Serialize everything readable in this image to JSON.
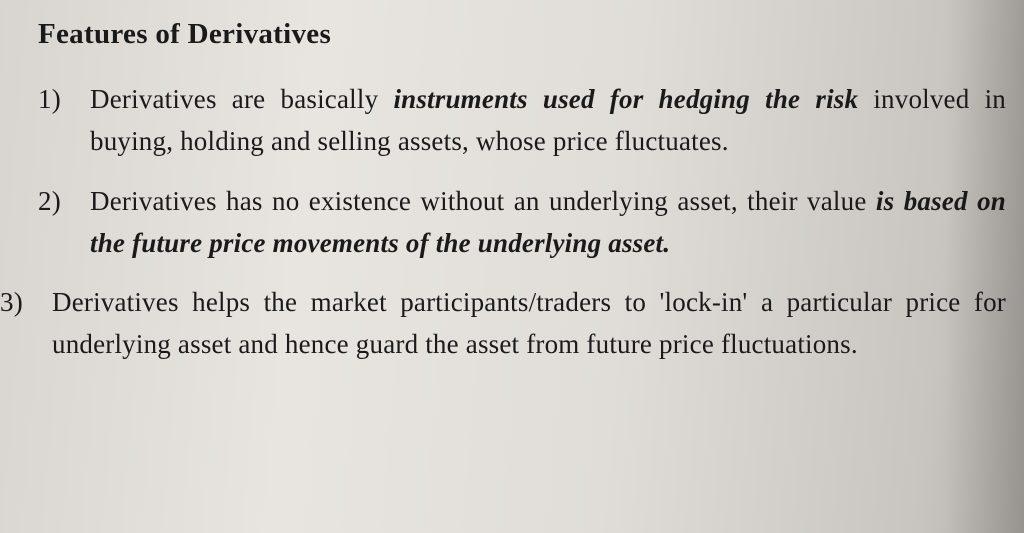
{
  "heading": "Features of Derivatives",
  "items": [
    {
      "num": "1)",
      "p1": "Derivatives are basically ",
      "em1": "instruments used for hedging the risk",
      "p2": " involved in buying, holding and selling assets, whose price fluctuates."
    },
    {
      "num": "2)",
      "p1": "Derivatives has no existence without an underlying asset, their value ",
      "em1": "is based on the future price movements of the underlying asset.",
      "p2": ""
    },
    {
      "num": "3)",
      "p1": "Derivatives helps the market participants/traders to 'lock-in' a particular price for underlying asset and hence guard the asset from future price fluctuations.",
      "em1": "",
      "p2": ""
    }
  ],
  "colors": {
    "text": "#1a1a1a",
    "background_light": "#e8e5e0",
    "background_dark": "#c8c5c0"
  },
  "typography": {
    "heading_fontsize": 29,
    "body_fontsize": 27,
    "font_family": "Georgia, Times New Roman, serif",
    "line_height": 1.55
  }
}
